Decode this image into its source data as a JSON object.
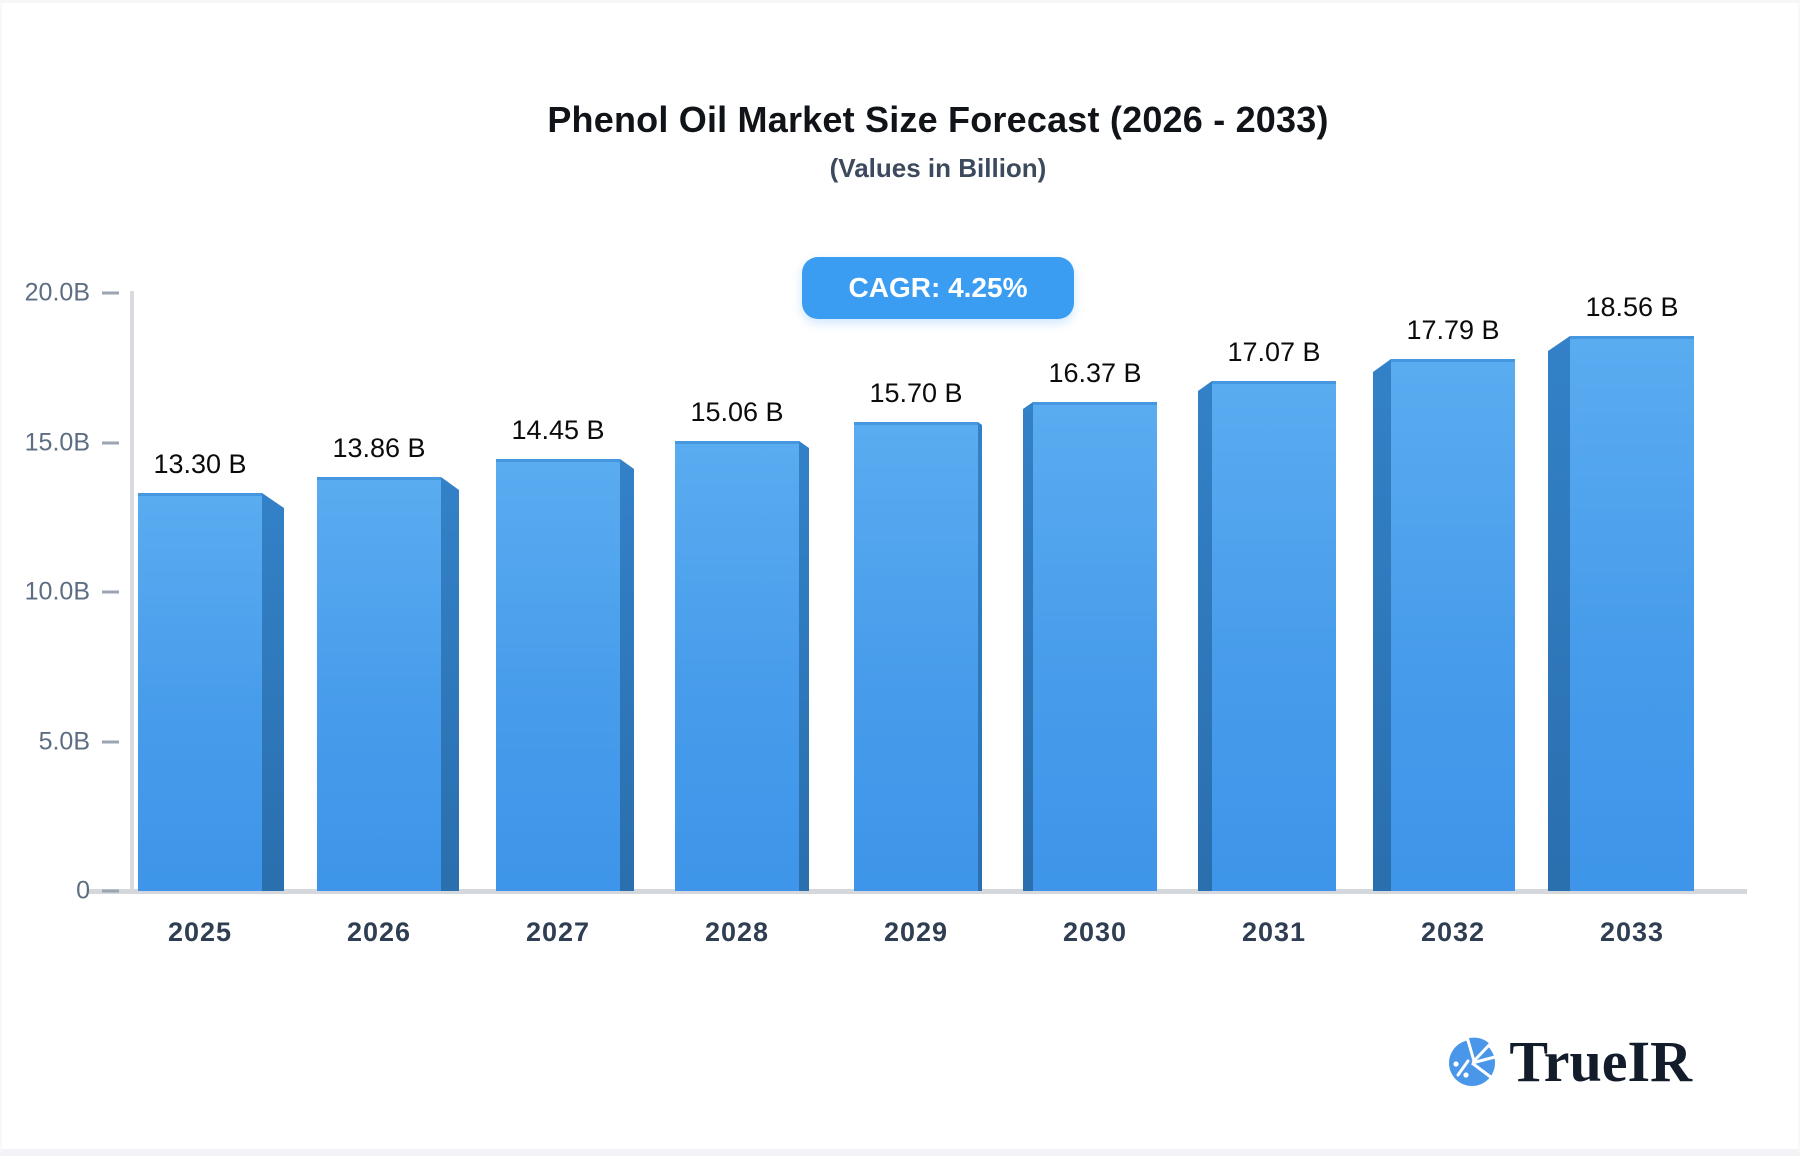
{
  "header": {
    "title": "Phenol Oil Market Size Forecast (2026 - 2033)",
    "subtitle": "(Values in Billion)",
    "cagr_badge": "CAGR: 4.25%"
  },
  "chart_data": {
    "type": "bar",
    "title": "Phenol Oil Market Size Forecast (2026 - 2033)",
    "subtitle": "(Values in Billion)",
    "cagr_percent": "4.25%",
    "categories": [
      "2025",
      "2026",
      "2027",
      "2028",
      "2029",
      "2030",
      "2031",
      "2032",
      "2033"
    ],
    "values": [
      13.3,
      13.86,
      14.45,
      15.06,
      15.7,
      16.37,
      17.07,
      17.79,
      18.56
    ],
    "bar_labels": [
      "13.30 B",
      "13.86 B",
      "14.45 B",
      "15.06 B",
      "15.70 B",
      "16.37 B",
      "17.07 B",
      "17.79 B",
      "18.56 B"
    ],
    "xlabel": "",
    "ylabel": "",
    "ylim": [
      0,
      20
    ],
    "y_tick_values": [
      20,
      15,
      10,
      5,
      0
    ],
    "y_tick_labels": [
      "20.0B",
      "15.0B",
      "10.0B",
      "5.0B",
      "0"
    ],
    "grid": false,
    "legend": false,
    "unit": "Billion",
    "bar_color": "#479ceb",
    "bar_side_color": "#2e78ba",
    "badge_color": "#3b9df1",
    "style": "3d-perspective-bars"
  },
  "branding": {
    "logo_text": "TrueIR",
    "logo_icon": "pie-chart-icon",
    "logo_icon_color": "#4a97e9",
    "logo_text_color": "#121c2b"
  }
}
